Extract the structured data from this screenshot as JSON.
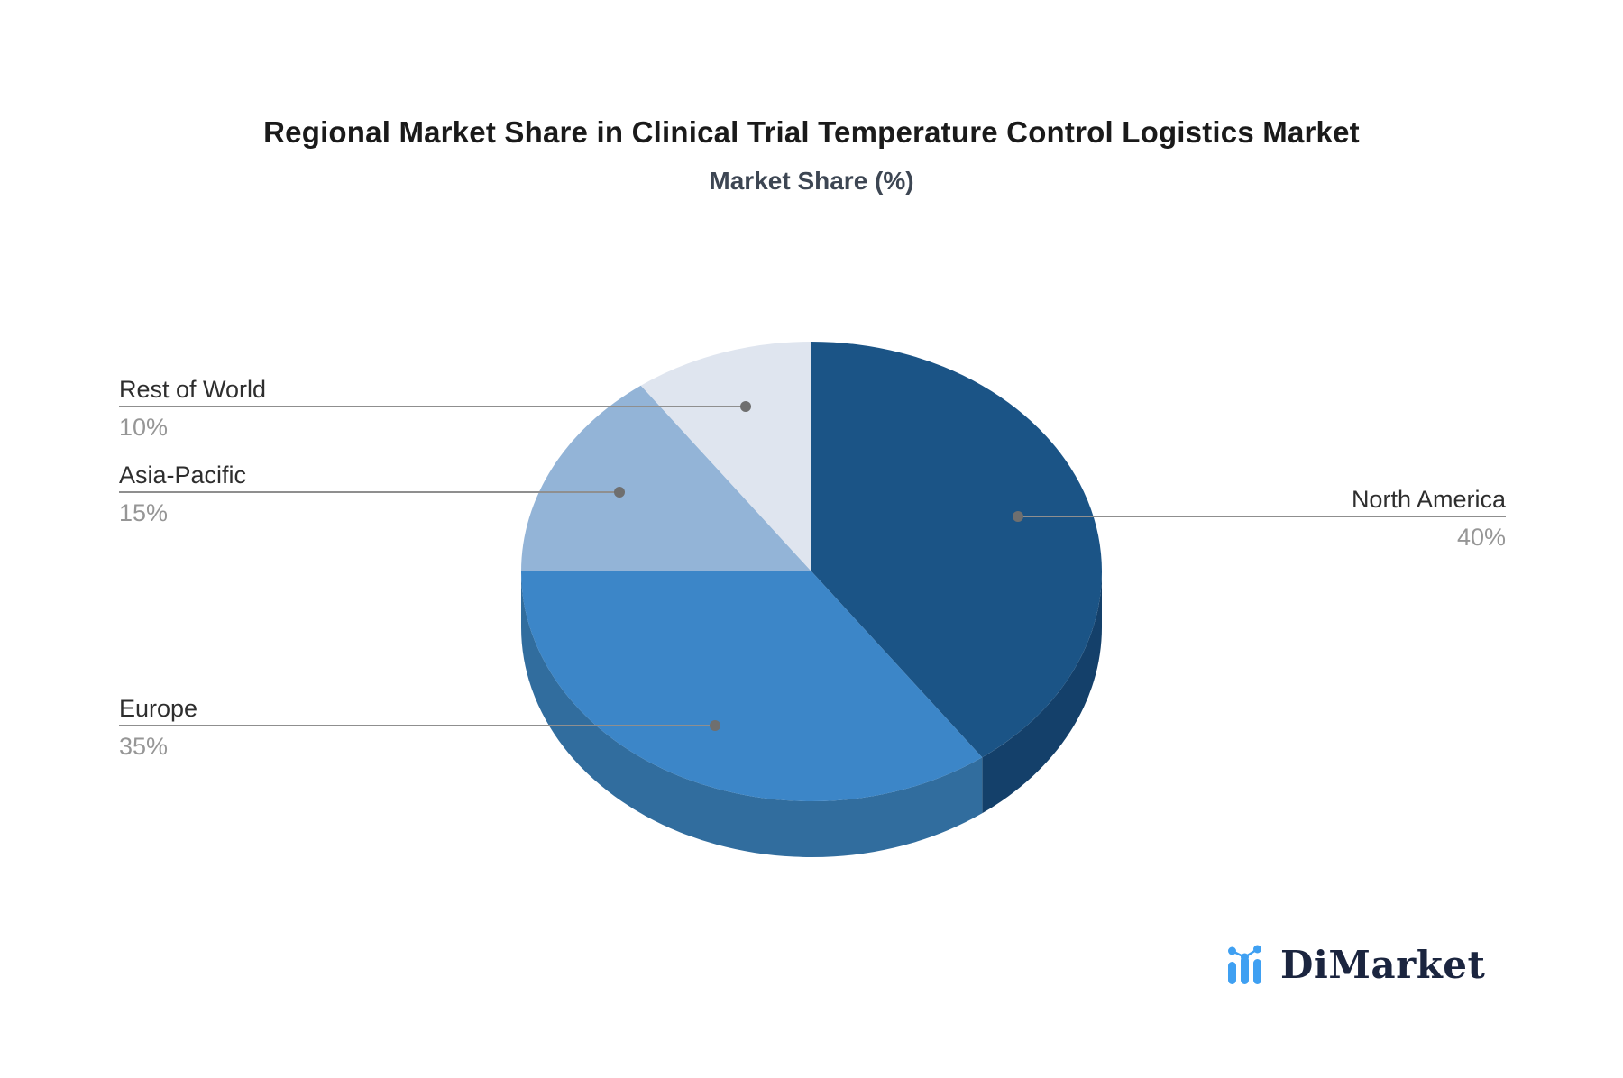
{
  "title": "Regional Market Share in Clinical Trial Temperature Control Logistics Market",
  "subtitle": "Market Share (%)",
  "chart_data": {
    "type": "pie",
    "style": "3d",
    "title": "Regional Market Share in Clinical Trial Temperature Control Logistics Market",
    "subtitle": "Market Share (%)",
    "unit": "%",
    "categories": [
      "North America",
      "Europe",
      "Asia-Pacific",
      "Rest of World"
    ],
    "values": [
      40,
      35,
      15,
      10
    ],
    "start_angle_deg": 0,
    "direction": "clockwise",
    "legend_position": "callout-labels",
    "labels": [
      {
        "name": "North America",
        "value_text": "40%"
      },
      {
        "name": "Europe",
        "value_text": "35%"
      },
      {
        "name": "Asia-Pacific",
        "value_text": "15%"
      },
      {
        "name": "Rest of World",
        "value_text": "10%"
      }
    ],
    "slice_colors": [
      "#1B5486",
      "#3C86C8",
      "#93B4D7",
      "#DFE5EF"
    ],
    "rim_colors": [
      "#14406A",
      "#316D9E",
      "#7FA0C4",
      "#C9D3E3"
    ]
  },
  "colors": {
    "background": "#FFFFFF",
    "title_text": "#1A1A1A",
    "subtitle_text": "#3D4653",
    "label_text": "#2E2E2E",
    "percent_text": "#969696",
    "leader_line": "#8F8F8F",
    "leader_dot": "#6F6F6F",
    "logo_blue": "#3FA0F2",
    "logo_navy": "#1B253F"
  },
  "branding": {
    "logo_text": "DiMarket",
    "logo_icon": "bar-chart-with-trend-dots-icon"
  }
}
